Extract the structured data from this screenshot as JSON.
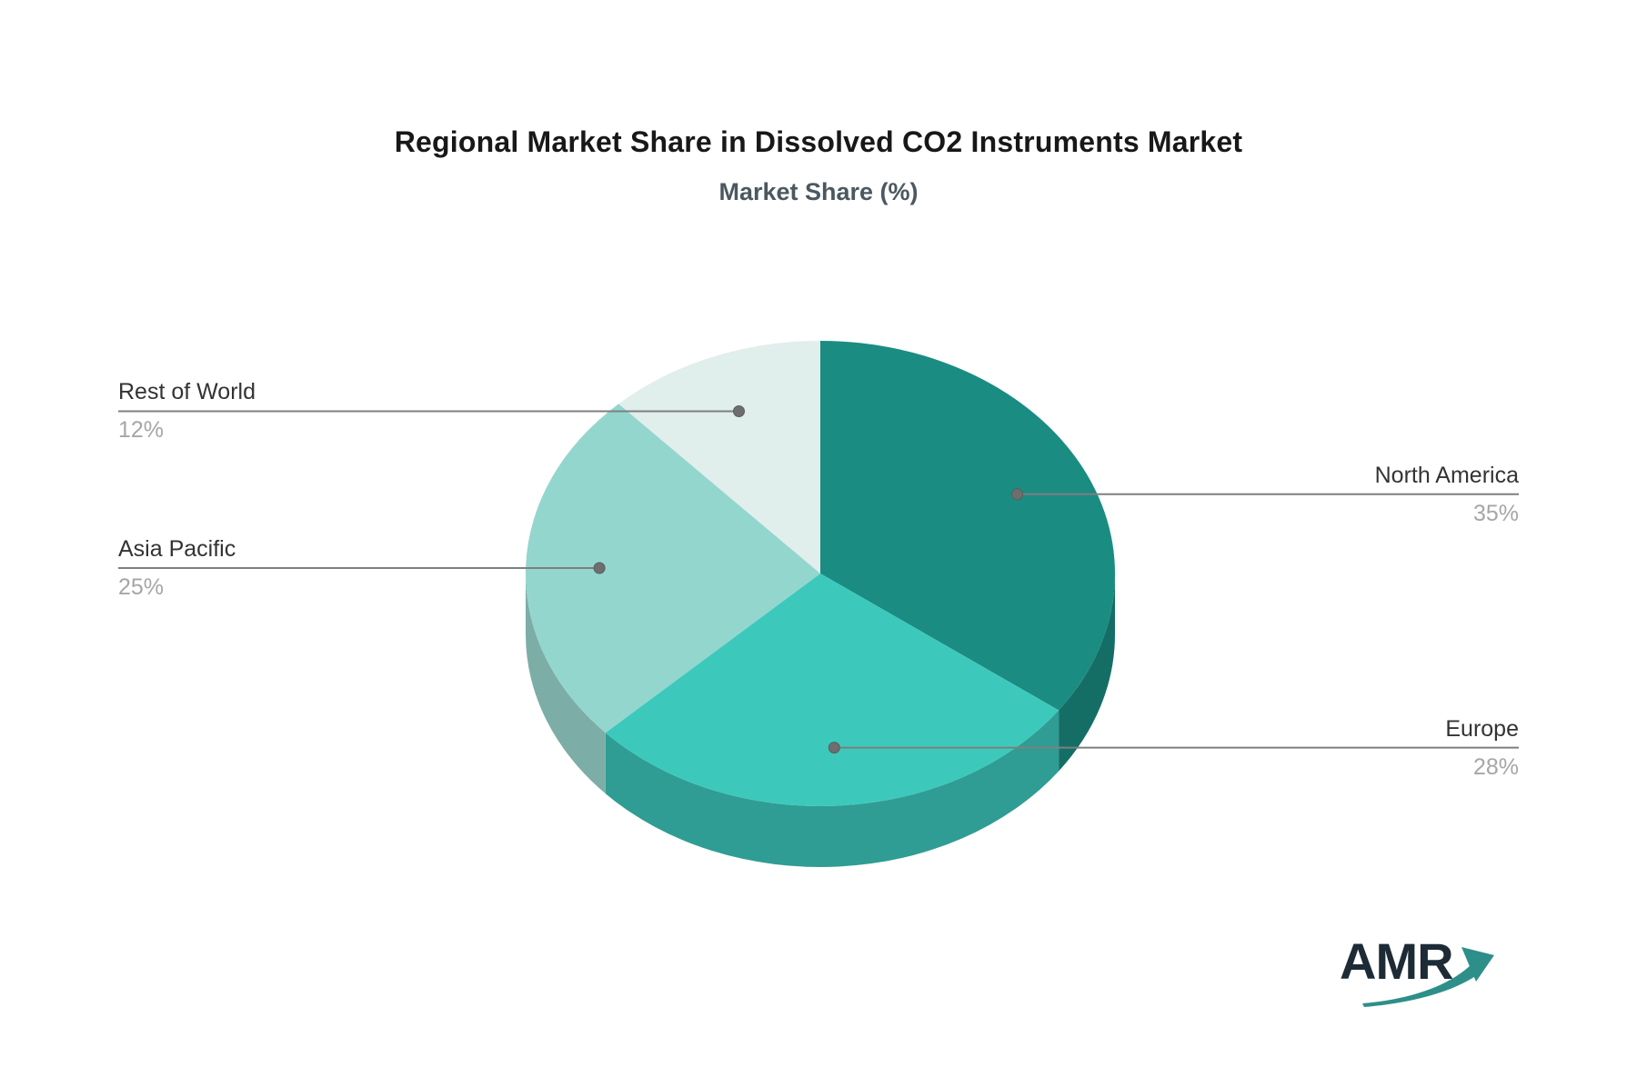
{
  "chart_data": {
    "type": "pie",
    "style": "3d-pie",
    "title": "Regional Market Share in Dissolved CO2 Instruments Market",
    "subtitle": "Market Share (%)",
    "unit": "%",
    "start_angle_deg": 0,
    "direction": "clockwise",
    "legend_position": "callout-labels",
    "slices": [
      {
        "label": "North America",
        "value": 35,
        "display": "35%",
        "color": "#1b8c82",
        "side_color": "#156e66",
        "label_side": "right"
      },
      {
        "label": "Europe",
        "value": 28,
        "display": "28%",
        "color": "#3cc9bc",
        "side_color": "#2f9d93",
        "label_side": "right"
      },
      {
        "label": "Asia Pacific",
        "value": 25,
        "display": "25%",
        "color": "#93d6ce",
        "side_color": "#7cada7",
        "label_side": "left"
      },
      {
        "label": "Rest of World",
        "value": 12,
        "display": "12%",
        "color": "#e0eeec",
        "side_color": "#c4d8d4",
        "label_side": "left"
      }
    ]
  },
  "branding": {
    "logo_text": "AMR",
    "logo_text_color": "#1d2b36",
    "logo_arrow_color": "#2e8f8a"
  },
  "colors": {
    "leader_line": "#7f7f7f",
    "leader_dot": "#6e6e6e",
    "label_text": "#333333",
    "percent_text": "#a6a6a6",
    "title_text": "#181818",
    "subtitle_text": "#4b5860",
    "background": "#ffffff"
  }
}
